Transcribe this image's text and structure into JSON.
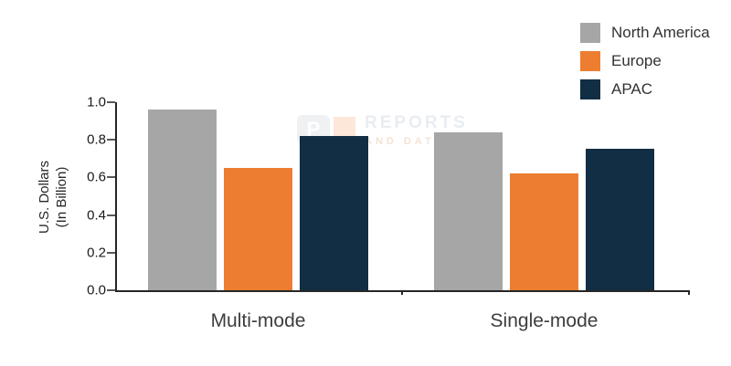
{
  "chart_data": {
    "type": "bar",
    "title": "",
    "categories": [
      "Multi-mode",
      "Single-mode"
    ],
    "series": [
      {
        "name": "North America",
        "color": "#a6a6a6",
        "values": [
          0.96,
          0.84
        ]
      },
      {
        "name": "Europe",
        "color": "#ed7d31",
        "values": [
          0.65,
          0.62
        ]
      },
      {
        "name": "APAC",
        "color": "#112e44",
        "values": [
          0.82,
          0.75
        ]
      }
    ],
    "xlabel": "",
    "ylabel_line1": "U.S. Dollars",
    "ylabel_line2": "(In Billion)",
    "ylim": [
      0.0,
      1.0
    ],
    "ytick_labels": [
      "1.0",
      "0.8",
      "0.6",
      "0.4",
      "0.2",
      "0.0"
    ],
    "grid": false,
    "legend_position": "top-right",
    "colors": {
      "axis": "#262626",
      "tick_label": "#1a1a1a",
      "category_label": "#3d3d3d",
      "legend_label": "#333333"
    }
  },
  "watermark": {
    "logo_letter": "P",
    "brand_line1": "REPORTS",
    "brand_line2": "AND DATA"
  }
}
